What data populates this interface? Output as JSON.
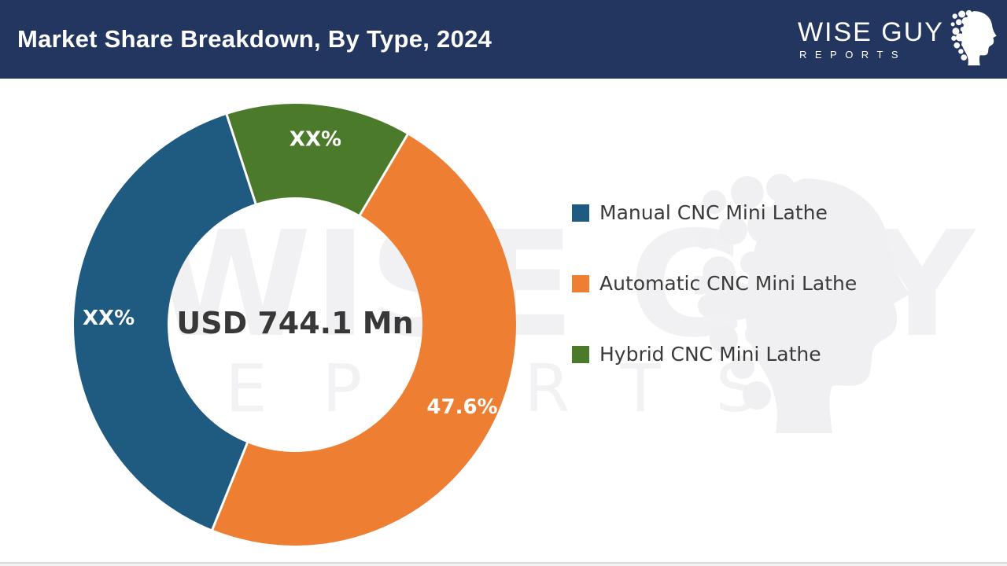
{
  "header": {
    "title": "Market Share Breakdown, By Type, 2024",
    "bg_color": "#22365f",
    "logo": {
      "line1": "WISE GUY",
      "line2": "REPORTS"
    }
  },
  "watermark": {
    "line1": "WISE GUY",
    "line2": "REPORTS"
  },
  "chart_data": {
    "type": "pie",
    "subtype": "donut",
    "title": "Market Share Breakdown, By Type, 2024",
    "center_label": "USD 744.1 Mn",
    "start_angle_deg": -18,
    "direction": "clockwise",
    "donut_hole_ratio": 0.58,
    "slices": [
      {
        "name": "Hybrid CNC Mini Lathe",
        "display_label": "XX%",
        "value_pct": 13.5,
        "color": "#4a7a2a"
      },
      {
        "name": "Automatic CNC Mini Lathe",
        "display_label": "47.6%",
        "value_pct": 47.6,
        "color": "#ee7e32"
      },
      {
        "name": "Manual CNC Mini Lathe",
        "display_label": "XX%",
        "value_pct": 38.9,
        "color": "#1f5a80"
      }
    ],
    "legend": {
      "position": "right",
      "items": [
        {
          "label": "Manual CNC Mini Lathe",
          "color": "#1f5a80"
        },
        {
          "label": "Automatic CNC Mini Lathe",
          "color": "#ee7e32"
        },
        {
          "label": "Hybrid CNC Mini Lathe",
          "color": "#4a7a2a"
        }
      ]
    }
  }
}
